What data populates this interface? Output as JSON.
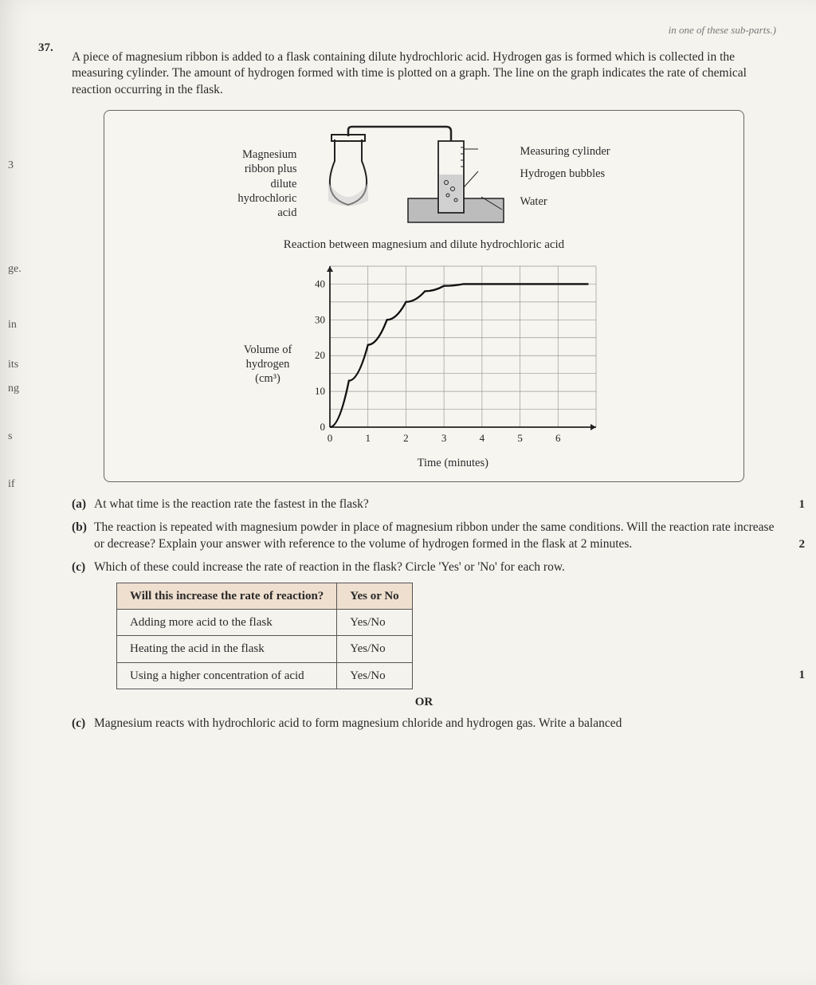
{
  "header_hint": "in one of these sub-parts.)",
  "question_number": "37.",
  "side_margin": "3",
  "intro": "A piece of magnesium ribbon is added to a flask containing dilute hydrochloric acid. Hydrogen gas is formed which is collected in the measuring cylinder. The amount of hydrogen formed with time is plotted on a graph. The line on the graph indicates the rate of chemical reaction occurring in the flask.",
  "apparatus": {
    "flask_label_l1": "Magnesium",
    "flask_label_l2": "ribbon plus",
    "flask_label_l3": "dilute",
    "flask_label_l4": "hydrochloric",
    "flask_label_l5": "acid",
    "cyl_label": "Measuring cylinder",
    "bubbles_label": "Hydrogen bubbles",
    "water_label": "Water"
  },
  "graph": {
    "title": "Reaction between magnesium and dilute hydrochloric acid",
    "y_label_l1": "Volume of",
    "y_label_l2": "hydrogen",
    "y_label_l3": "(cm³)",
    "x_label": "Time (minutes)",
    "y_ticks": [
      "0",
      "10",
      "20",
      "30",
      "40"
    ],
    "x_ticks": [
      "0",
      "1",
      "2",
      "3",
      "4",
      "5",
      "6"
    ],
    "ylim": [
      0,
      45
    ],
    "xlim": [
      0,
      7
    ],
    "grid_color": "#999",
    "axis_color": "#222",
    "curve_color": "#111",
    "curve_points": [
      [
        0,
        0
      ],
      [
        0.5,
        13
      ],
      [
        1,
        23
      ],
      [
        1.5,
        30
      ],
      [
        2,
        35
      ],
      [
        2.5,
        38
      ],
      [
        3,
        39.5
      ],
      [
        3.5,
        40
      ],
      [
        6.8,
        40
      ]
    ]
  },
  "sub": {
    "a": "At what time is the reaction rate the fastest in the flask?",
    "b": "The reaction is repeated with magnesium powder in place of magnesium ribbon under the same conditions. Will the reaction rate increase or decrease? Explain your answer with reference to the volume of hydrogen formed in the flask at 2 minutes.",
    "c": "Which of these could increase the rate of reaction in the flask? Circle 'Yes' or 'No' for each row.",
    "c_alt": "Magnesium reacts with hydrochloric acid to form magnesium chloride and hydrogen gas. Write a balanced"
  },
  "marks": {
    "a": "1",
    "b": "2",
    "c": "1"
  },
  "table": {
    "header_q": "Will this increase the rate of reaction?",
    "header_a": "Yes or No",
    "rows": [
      [
        "Adding more acid to the flask",
        "Yes/No"
      ],
      [
        "Heating the acid in the flask",
        "Yes/No"
      ],
      [
        "Using a higher concentration of acid",
        "Yes/No"
      ]
    ]
  },
  "or": "OR",
  "margin_fragments": [
    "ge.",
    "in",
    "its",
    "ng",
    "s",
    "if"
  ]
}
